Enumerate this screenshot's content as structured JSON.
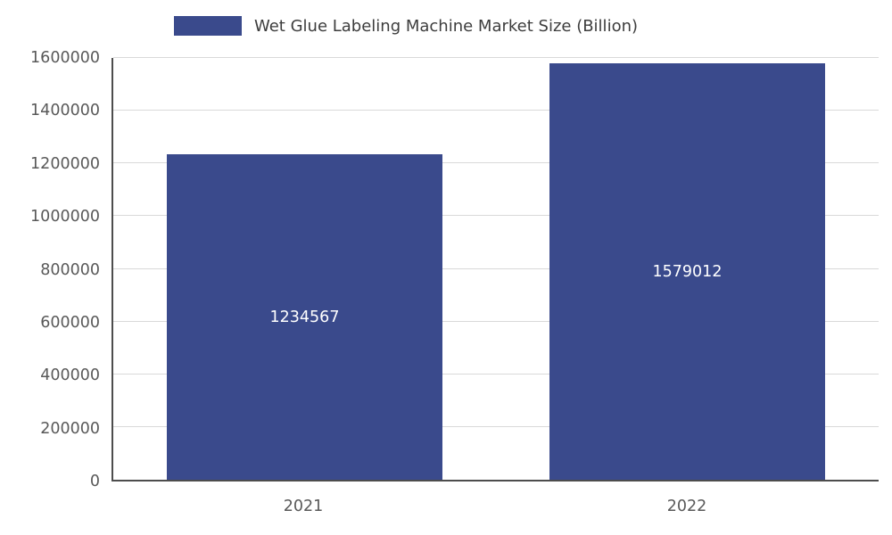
{
  "chart_data": {
    "type": "bar",
    "title": "Wet Glue Labeling Machine Market Size (Billion)",
    "categories": [
      "2021",
      "2022"
    ],
    "values": [
      1234567,
      1579012
    ],
    "bar_labels": [
      "1234567",
      "1579012"
    ],
    "xlabel": "",
    "ylabel": "",
    "ylim": [
      0,
      1600000
    ],
    "ytick_step": 200000,
    "ytick_labels": [
      "0",
      "200000",
      "400000",
      "600000",
      "800000",
      "1000000",
      "1200000",
      "1400000",
      "1600000"
    ],
    "grid": true,
    "legend_position": "top",
    "colors": {
      "bar": "#3A4A8C",
      "bar_label_text": "#ffffff",
      "tick_label": "#595959",
      "gridline": "#d9d9d9",
      "axis": "#4d4d4d",
      "title": "#3d3d3d"
    }
  }
}
